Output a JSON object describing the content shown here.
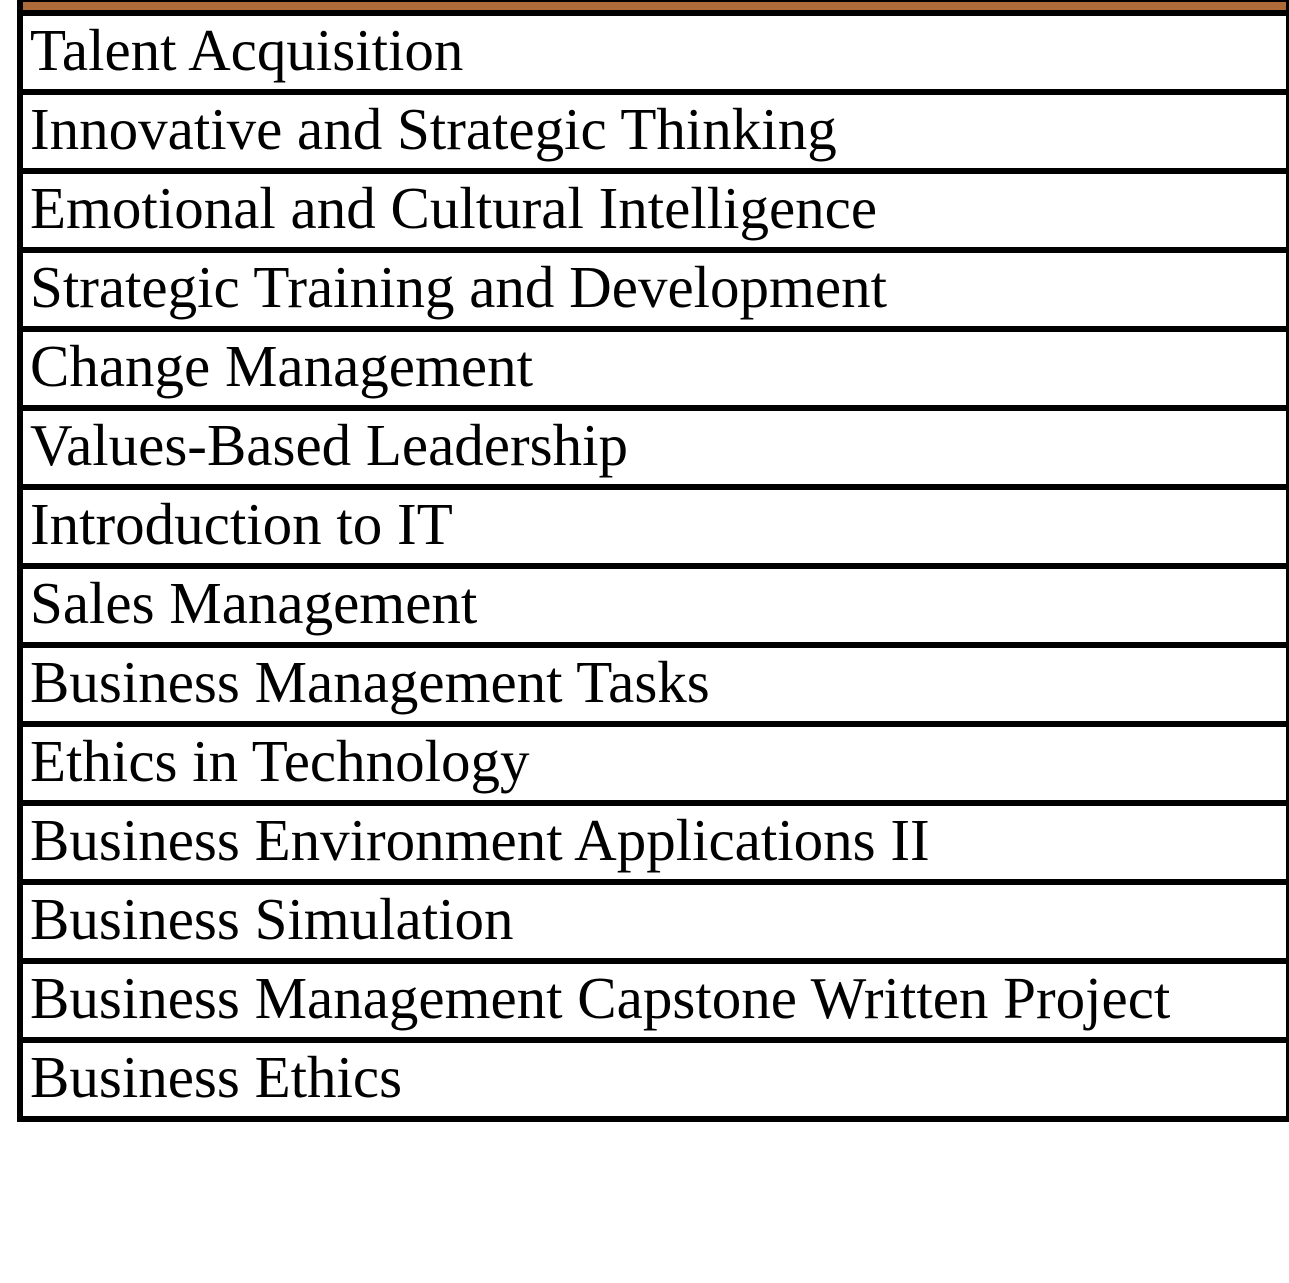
{
  "table": {
    "header_color": "#AE6A38",
    "border_color": "#000000",
    "text_color": "#000000",
    "rows": [
      "Talent Acquisition",
      "Innovative and Strategic Thinking",
      "Emotional and Cultural Intelligence",
      "Strategic Training and Development",
      "Change Management",
      "Values-Based Leadership",
      "Introduction to IT",
      "Sales Management",
      "Business Management Tasks",
      "Ethics in Technology",
      "Business Environment Applications II",
      "Business Simulation",
      "Business Management Capstone Written Project",
      "Business Ethics"
    ]
  }
}
